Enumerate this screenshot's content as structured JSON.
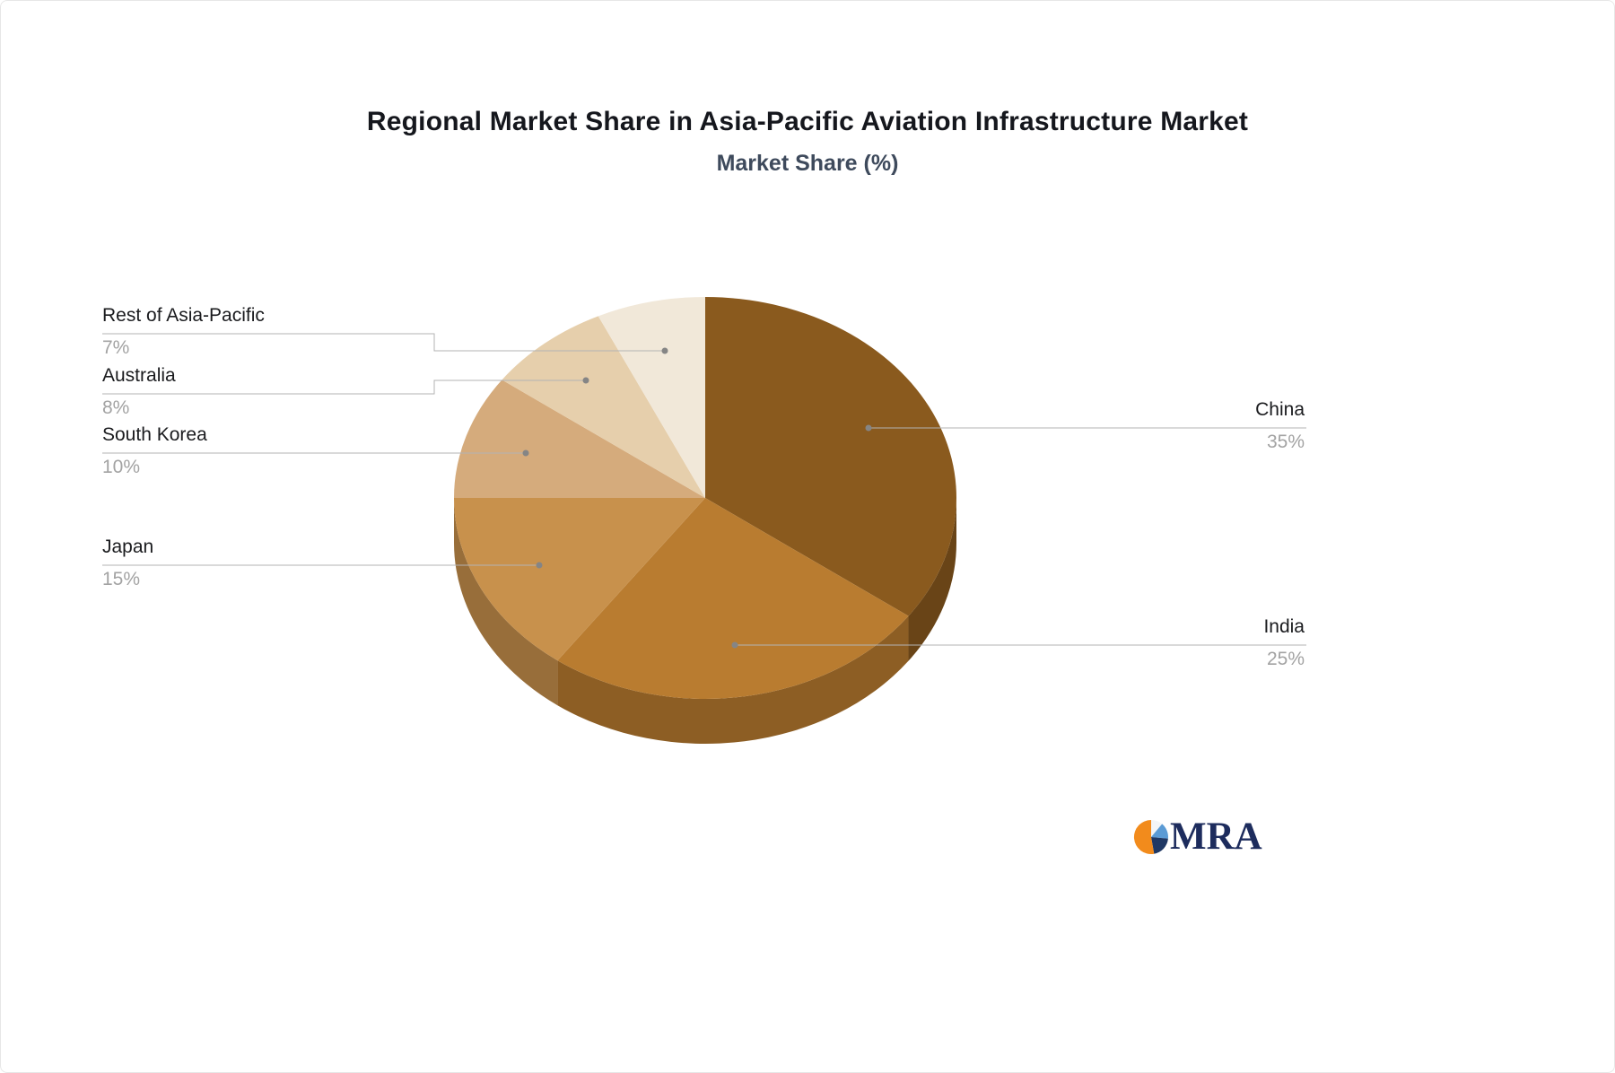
{
  "title": "Regional Market Share in Asia-Pacific Aviation Infrastructure Market",
  "subtitle": "Market Share (%)",
  "logo_text": "MRA",
  "chart_data": {
    "type": "pie",
    "style": "3d-pie",
    "title": "Regional Market Share in Asia-Pacific Aviation Infrastructure Market",
    "subtitle": "Market Share (%)",
    "unit": "%",
    "start_angle_deg": 0,
    "direction": "clockwise",
    "legend_position": "none",
    "labels_position": "outside-leader-lines",
    "categories": [
      "China",
      "India",
      "Japan",
      "South Korea",
      "Australia",
      "Rest of Asia-Pacific"
    ],
    "values": [
      35,
      25,
      15,
      10,
      8,
      7
    ],
    "slices": [
      {
        "label": "China",
        "value": 35,
        "pct_label": "35%",
        "color": "#8a5a1e"
      },
      {
        "label": "India",
        "value": 25,
        "pct_label": "25%",
        "color": "#b97c30"
      },
      {
        "label": "Japan",
        "value": 15,
        "pct_label": "15%",
        "color": "#c8914c"
      },
      {
        "label": "South Korea",
        "value": 10,
        "pct_label": "10%",
        "color": "#d5ab7c"
      },
      {
        "label": "Australia",
        "value": 8,
        "pct_label": "8%",
        "color": "#e6cfac"
      },
      {
        "label": "Rest of Asia-Pacific",
        "value": 7,
        "pct_label": "7%",
        "color": "#f1e8d9"
      }
    ]
  }
}
